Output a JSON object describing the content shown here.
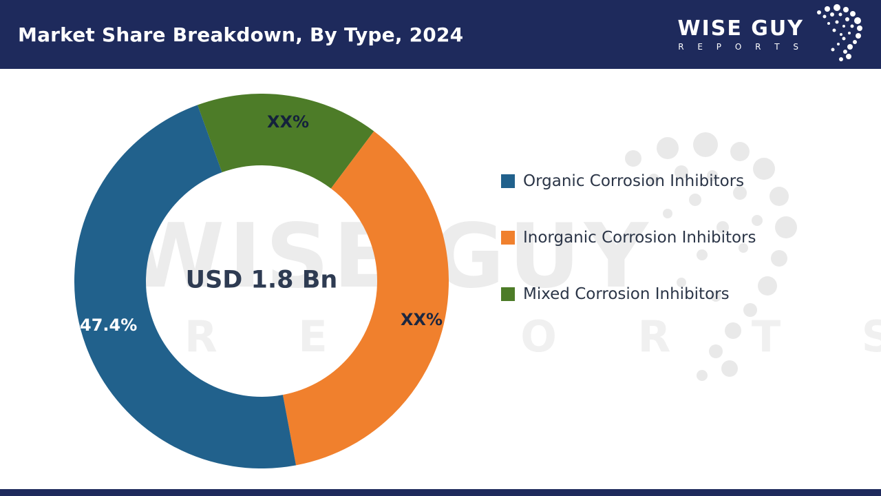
{
  "header": {
    "title": "Market Share Breakdown, By Type, 2024",
    "logo_line1": "WISE GUY",
    "logo_line2": "R E P O R T S"
  },
  "watermark": {
    "line1": "WISE GUY",
    "line2": "R E P O R T S"
  },
  "chart_data": {
    "type": "pie",
    "subtype": "donut",
    "title": "Market Share Breakdown, By Type, 2024",
    "center_label": "USD 1.8 Bn",
    "start_angle_deg": -20,
    "draw_order": [
      2,
      1,
      0
    ],
    "legend_position": "right",
    "segments": [
      {
        "label": "Organic Corrosion Inhibitors",
        "display_value": "47.4%",
        "value_pct": 47.4,
        "color": "#21618C"
      },
      {
        "label": "Inorganic Corrosion Inhibitors",
        "display_value": "XX%",
        "value_pct": 36.8,
        "color": "#F0802D"
      },
      {
        "label": "Mixed Corrosion Inhibitors",
        "display_value": "XX%",
        "value_pct": 15.8,
        "color": "#4D7C28"
      }
    ]
  },
  "colors": {
    "header_bar": "#1e2a5c",
    "footer_bar": "#1e2a5c",
    "center_text": "#2e3b52",
    "legend_text": "#2b3547"
  }
}
